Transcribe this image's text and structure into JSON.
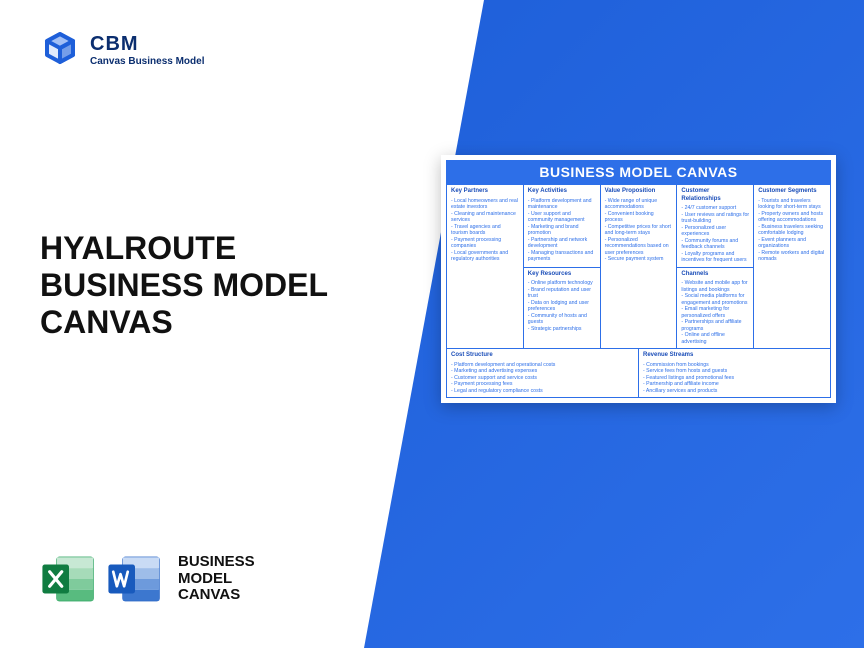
{
  "logo": {
    "title": "CBM",
    "subtitle": "Canvas Business Model"
  },
  "main_title": {
    "line1": "HYALROUTE",
    "line2": "BUSINESS MODEL",
    "line3": "CANVAS"
  },
  "file_label": {
    "line1": "BUSINESS",
    "line2": "MODEL",
    "line3": "CANVAS"
  },
  "canvas": {
    "header": "BUSINESS MODEL CANVAS",
    "colors": {
      "accent": "#2d6fe8",
      "text": "#2d6fe8",
      "header_bg": "#2d6fe8",
      "header_fg": "#ffffff"
    },
    "blocks": {
      "key_partners": {
        "title": "Key Partners",
        "items": [
          "Local homeowners and real estate investors",
          "Cleaning and maintenance services",
          "Travel agencies and tourism boards",
          "Payment processing companies",
          "Local governments and regulatory authorities"
        ]
      },
      "key_activities": {
        "title": "Key Activities",
        "items": [
          "Platform development and maintenance",
          "User support and community management",
          "Marketing and brand promotion",
          "Partnership and network development",
          "Managing transactions and payments"
        ]
      },
      "value_proposition": {
        "title": "Value Proposition",
        "items": [
          "Wide range of unique accommodations",
          "Convenient booking process",
          "Competitive prices for short and long-term stays",
          "Personalized recommendations based on user preferences",
          "Secure payment system"
        ]
      },
      "customer_relationships": {
        "title": "Customer Relationships",
        "items": [
          "24/7 customer support",
          "User reviews and ratings for trust-building",
          "Personalized user experiences",
          "Community forums and feedback channels",
          "Loyalty programs and incentives for frequent users"
        ]
      },
      "customer_segments": {
        "title": "Customer Segments",
        "items": [
          "Tourists and travelers looking for short-term stays",
          "Property owners and hosts offering accommodations",
          "Business travelers seeking comfortable lodging",
          "Event planners and organizations",
          "Remote workers and digital nomads"
        ]
      },
      "key_resources": {
        "title": "Key Resources",
        "items": [
          "Online platform technology",
          "Brand reputation and user trust",
          "Data on lodging and user preferences",
          "Community of hosts and guests",
          "Strategic partnerships"
        ]
      },
      "channels": {
        "title": "Channels",
        "items": [
          "Website and mobile app for listings and bookings",
          "Social media platforms for engagement and promotions",
          "Email marketing for personalized offers",
          "Partnerships and affiliate programs",
          "Online and offline advertising"
        ]
      },
      "cost_structure": {
        "title": "Cost Structure",
        "items": [
          "Platform development and operational costs",
          "Marketing and advertising expenses",
          "Customer support and service costs",
          "Payment processing fees",
          "Legal and regulatory compliance costs"
        ]
      },
      "revenue_streams": {
        "title": "Revenue Streams",
        "items": [
          "Commission from bookings",
          "Service fees from hosts and guests",
          "Featured listings and promotional fees",
          "Partnership and affiliate income",
          "Ancillary services and products"
        ]
      }
    }
  }
}
